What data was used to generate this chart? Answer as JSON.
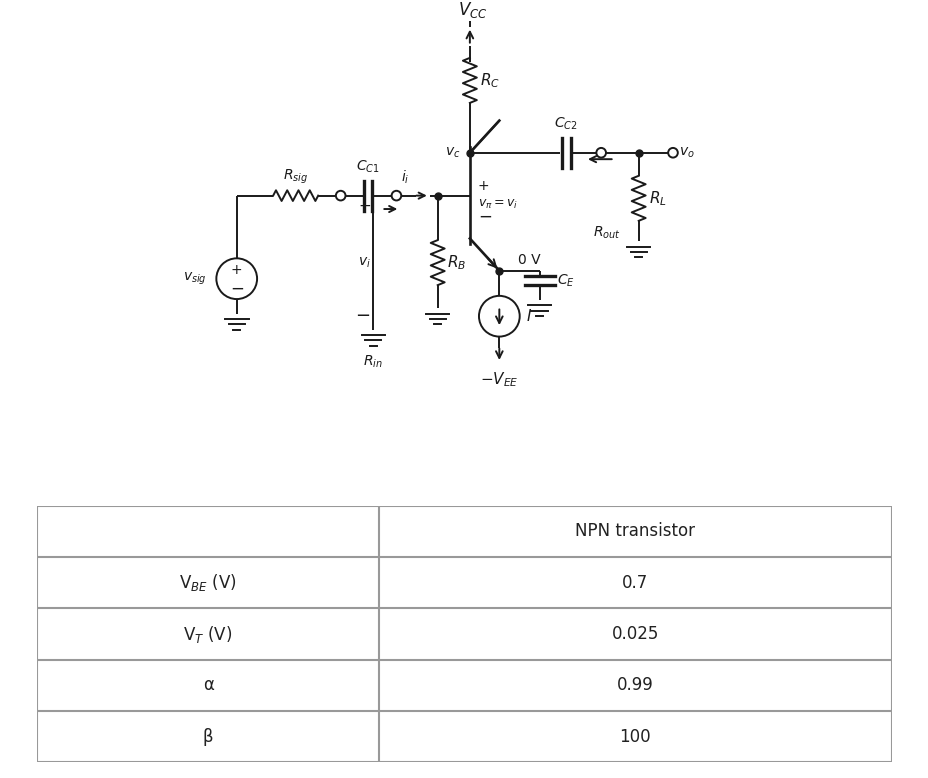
{
  "table_rows": [
    {
      "label": "",
      "value": "NPN transistor"
    },
    {
      "label": "V$_{BE}$ (V)",
      "value": "0.7"
    },
    {
      "label": "V$_T$ (V)",
      "value": "0.025"
    },
    {
      "label": "α",
      "value": "0.99"
    },
    {
      "label": "β",
      "value": "100"
    }
  ],
  "bg_color": "#ffffff",
  "circuit_color": "#1a1a1a",
  "table_border_color": "#999999"
}
